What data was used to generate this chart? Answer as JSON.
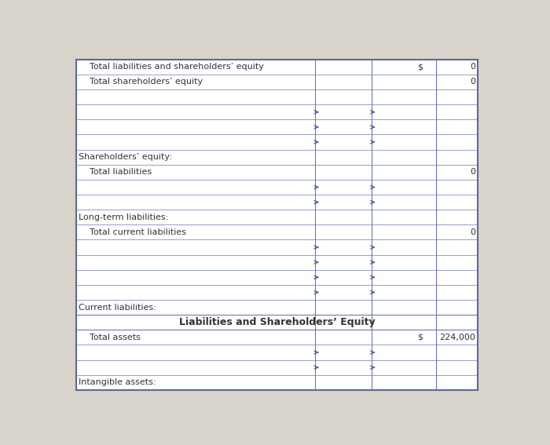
{
  "background_color": "#d8d4cc",
  "table_bg": "#ffffff",
  "border_color": "#5a6a9a",
  "line_color": "#6a7ab0",
  "text_color": "#333333",
  "figsize": [
    7.0,
    5.67
  ],
  "dpi": 100,
  "font_size": 8.0,
  "header_font_size": 9.0,
  "rows": [
    {
      "label": "Intangible assets:",
      "indent": 0,
      "dollar": "",
      "value": "",
      "arrow1": false,
      "arrow2": false,
      "is_section_header": false,
      "is_center_header": false,
      "bold_label": false
    },
    {
      "label": "",
      "indent": 1,
      "dollar": "",
      "value": "",
      "arrow1": true,
      "arrow2": true,
      "is_section_header": false,
      "is_center_header": false,
      "bold_label": false
    },
    {
      "label": "",
      "indent": 1,
      "dollar": "",
      "value": "",
      "arrow1": true,
      "arrow2": true,
      "is_section_header": false,
      "is_center_header": false,
      "bold_label": false
    },
    {
      "label": "    Total assets",
      "indent": 1,
      "dollar": "$",
      "value": "224,000",
      "arrow1": false,
      "arrow2": false,
      "is_section_header": false,
      "is_center_header": false,
      "bold_label": false
    },
    {
      "label": "Liabilities and Shareholders’ Equity",
      "indent": 0,
      "dollar": "",
      "value": "",
      "arrow1": false,
      "arrow2": false,
      "is_section_header": false,
      "is_center_header": true,
      "bold_label": true
    },
    {
      "label": "Current liabilities:",
      "indent": 0,
      "dollar": "",
      "value": "",
      "arrow1": false,
      "arrow2": false,
      "is_section_header": false,
      "is_center_header": false,
      "bold_label": false
    },
    {
      "label": "",
      "indent": 1,
      "dollar": "",
      "value": "",
      "arrow1": true,
      "arrow2": true,
      "is_section_header": false,
      "is_center_header": false,
      "bold_label": false
    },
    {
      "label": "",
      "indent": 1,
      "dollar": "",
      "value": "",
      "arrow1": true,
      "arrow2": true,
      "is_section_header": false,
      "is_center_header": false,
      "bold_label": false
    },
    {
      "label": "",
      "indent": 1,
      "dollar": "",
      "value": "",
      "arrow1": true,
      "arrow2": true,
      "is_section_header": false,
      "is_center_header": false,
      "bold_label": false
    },
    {
      "label": "",
      "indent": 1,
      "dollar": "",
      "value": "",
      "arrow1": true,
      "arrow2": true,
      "is_section_header": false,
      "is_center_header": false,
      "bold_label": false
    },
    {
      "label": "    Total current liabilities",
      "indent": 1,
      "dollar": "",
      "value": "0",
      "arrow1": false,
      "arrow2": false,
      "is_section_header": false,
      "is_center_header": false,
      "bold_label": false
    },
    {
      "label": "Long-term liabilities:",
      "indent": 0,
      "dollar": "",
      "value": "",
      "arrow1": false,
      "arrow2": false,
      "is_section_header": false,
      "is_center_header": false,
      "bold_label": false
    },
    {
      "label": "",
      "indent": 1,
      "dollar": "",
      "value": "",
      "arrow1": true,
      "arrow2": true,
      "is_section_header": false,
      "is_center_header": false,
      "bold_label": false
    },
    {
      "label": "",
      "indent": 1,
      "dollar": "",
      "value": "",
      "arrow1": true,
      "arrow2": true,
      "is_section_header": false,
      "is_center_header": false,
      "bold_label": false
    },
    {
      "label": "    Total liabilities",
      "indent": 1,
      "dollar": "",
      "value": "0",
      "arrow1": false,
      "arrow2": false,
      "is_section_header": false,
      "is_center_header": false,
      "bold_label": false
    },
    {
      "label": "Shareholders’ equity:",
      "indent": 0,
      "dollar": "",
      "value": "",
      "arrow1": false,
      "arrow2": false,
      "is_section_header": false,
      "is_center_header": false,
      "bold_label": false
    },
    {
      "label": "",
      "indent": 1,
      "dollar": "",
      "value": "",
      "arrow1": true,
      "arrow2": true,
      "is_section_header": false,
      "is_center_header": false,
      "bold_label": false
    },
    {
      "label": "",
      "indent": 1,
      "dollar": "",
      "value": "",
      "arrow1": true,
      "arrow2": true,
      "is_section_header": false,
      "is_center_header": false,
      "bold_label": false
    },
    {
      "label": "",
      "indent": 1,
      "dollar": "",
      "value": "",
      "arrow1": true,
      "arrow2": true,
      "is_section_header": false,
      "is_center_header": false,
      "bold_label": false
    },
    {
      "label": "",
      "indent": 1,
      "dollar": "",
      "value": "",
      "arrow1": false,
      "arrow2": false,
      "is_section_header": false,
      "is_center_header": false,
      "bold_label": false
    },
    {
      "label": "    Total shareholders’ equity",
      "indent": 1,
      "dollar": "",
      "value": "0",
      "arrow1": false,
      "arrow2": false,
      "is_section_header": false,
      "is_center_header": false,
      "bold_label": false
    },
    {
      "label": "    Total liabilities and shareholders’ equity",
      "indent": 1,
      "dollar": "$",
      "value": "0",
      "arrow1": false,
      "arrow2": false,
      "is_section_header": false,
      "is_center_header": false,
      "bold_label": false
    }
  ]
}
